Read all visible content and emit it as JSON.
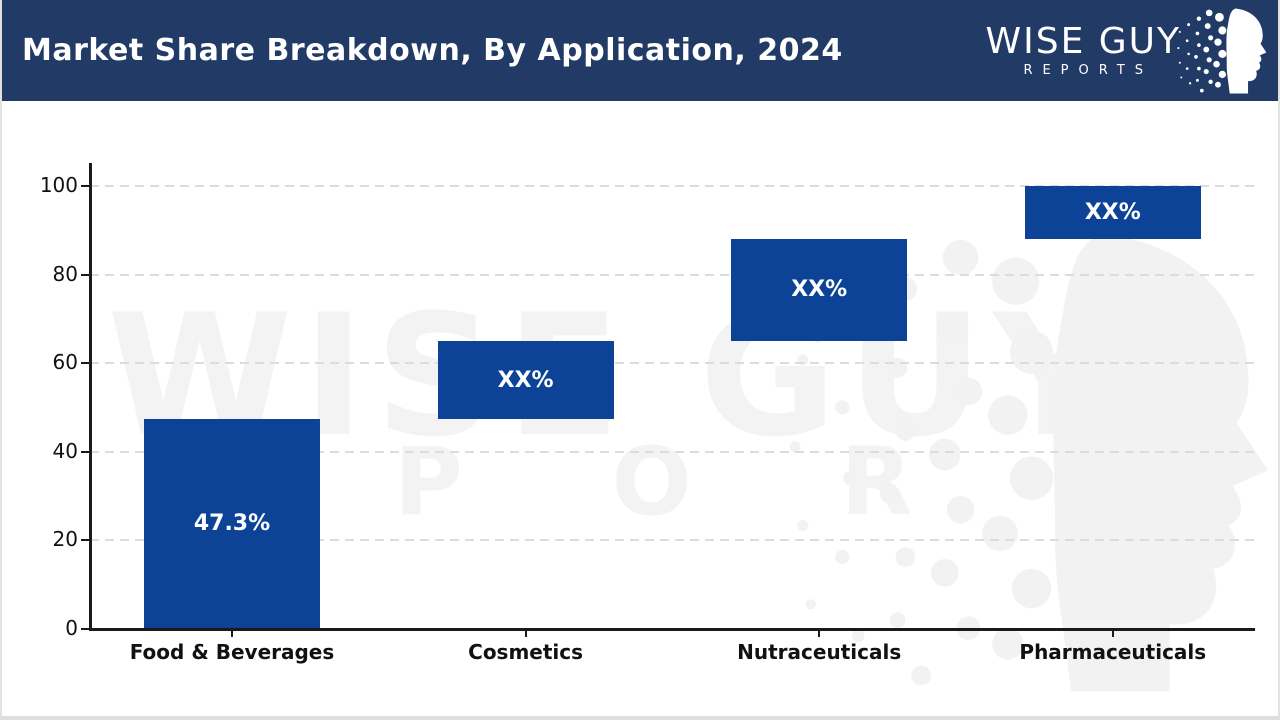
{
  "header": {
    "title": "Market Share Breakdown, By Application, 2024",
    "logo": {
      "line1": "WISE GUY",
      "line2": "REPORTS",
      "icon": "dotted-head-profile-icon"
    }
  },
  "watermark": {
    "line1": "WISE GUY",
    "line2": "P O R T S",
    "icon": "dotted-head-profile-icon"
  },
  "colors": {
    "header_navy": "#213a66",
    "bar_blue": "#0d4397",
    "grid_gray": "#dcdcdc",
    "axis_black": "#1a1a1a",
    "watermark_gray": "#f3f3f3",
    "value_label_white": "#ffffff"
  },
  "chart_data": {
    "type": "bar",
    "subtype": "waterfall",
    "title": "Market Share Breakdown, By Application, 2024",
    "categories": [
      "Food & Beverages",
      "Cosmetics",
      "Nutraceuticals",
      "Pharmaceuticals"
    ],
    "segments": [
      {
        "category": "Food & Beverages",
        "start": 0,
        "end": 47.3,
        "label": "47.3%"
      },
      {
        "category": "Cosmetics",
        "start": 47.3,
        "end": 65,
        "label": "XX%"
      },
      {
        "category": "Nutraceuticals",
        "start": 65,
        "end": 88,
        "label": "XX%"
      },
      {
        "category": "Pharmaceuticals",
        "start": 88,
        "end": 100,
        "label": "XX%"
      }
    ],
    "y_ticks": [
      0,
      20,
      40,
      60,
      80,
      100
    ],
    "ylim": [
      0,
      105
    ],
    "xlabel": "",
    "ylabel": "",
    "grid": "horizontal-dashed",
    "legend": "none",
    "value_labels_inside_bars": true
  }
}
